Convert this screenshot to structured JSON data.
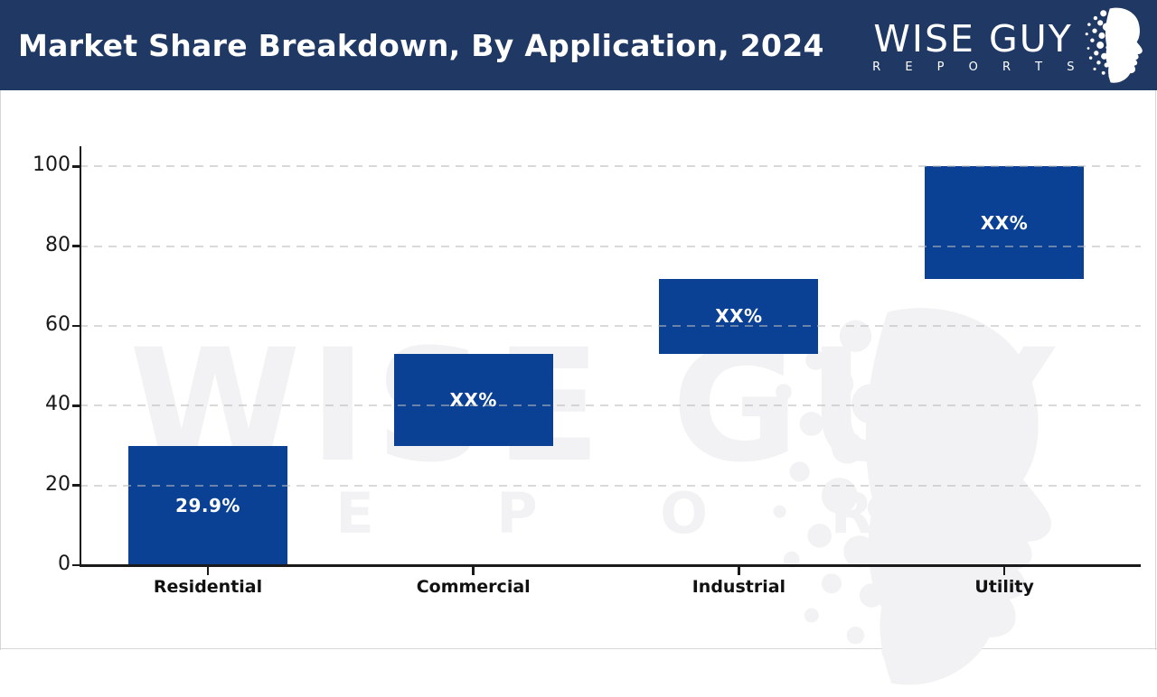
{
  "header": {
    "title": "Market Share Breakdown, By Application, 2024",
    "logo": {
      "line1": "WISE GUY",
      "line2": "R E P O R T S",
      "face_icon": "dotted-head-profile"
    }
  },
  "watermark": {
    "line1": "WISE GUY",
    "line2": "R E P O R T S",
    "face_icon": "dotted-head-profile"
  },
  "colors": {
    "header_bg": "#1f3864",
    "bar": "#0a4195",
    "bar_label": "#ffffff",
    "grid": "#e3e3e3",
    "axis": "#1a1a1a",
    "watermark": "#f2f2f4"
  },
  "chart_data": {
    "type": "bar",
    "subtype": "waterfall",
    "title": "Market Share Breakdown, By Application, 2024",
    "xlabel": "",
    "ylabel": "",
    "categories": [
      "Residential",
      "Commercial",
      "Industrial",
      "Utility"
    ],
    "bars": [
      {
        "category": "Residential",
        "start": 0,
        "end": 29.9,
        "label": "29.9%"
      },
      {
        "category": "Commercial",
        "start": 29.9,
        "end": 53.0,
        "label": "XX%"
      },
      {
        "category": "Industrial",
        "start": 53.0,
        "end": 71.8,
        "label": "XX%"
      },
      {
        "category": "Utility",
        "start": 71.8,
        "end": 100,
        "label": "XX%"
      }
    ],
    "y_ticks": [
      0,
      20,
      40,
      60,
      80,
      100
    ],
    "ylim": [
      0,
      105
    ],
    "grid": "dashed-horizontal-over-bars",
    "legend": "none"
  }
}
